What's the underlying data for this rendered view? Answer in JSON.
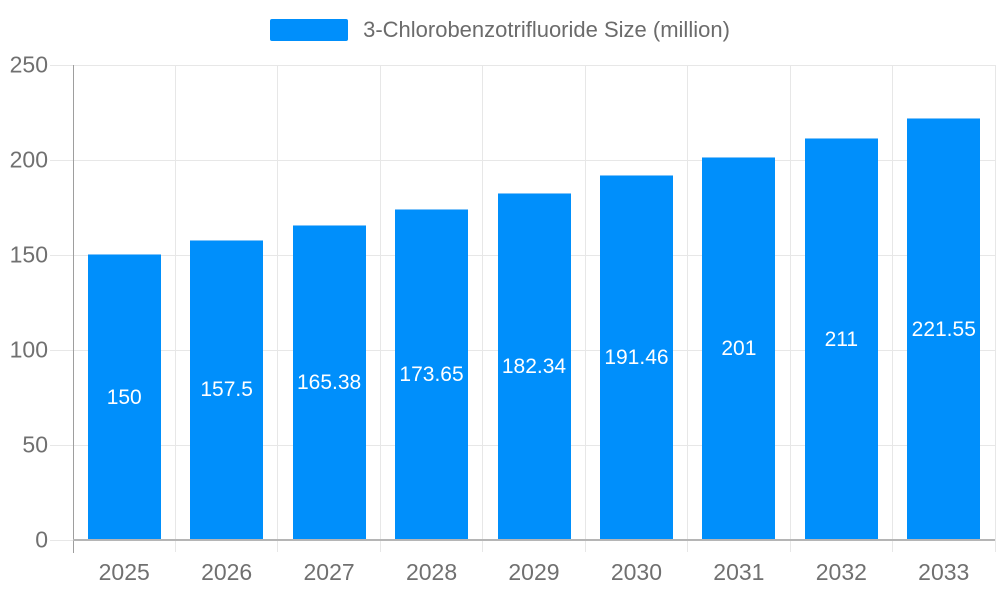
{
  "chart_data": {
    "type": "bar",
    "title": "3-Chlorobenzotrifluoride Size (million)",
    "categories": [
      "2025",
      "2026",
      "2027",
      "2028",
      "2029",
      "2030",
      "2031",
      "2032",
      "2033"
    ],
    "series": [
      {
        "name": "3-Chlorobenzotrifluoride Size (million)",
        "values": [
          150,
          157.5,
          165.38,
          173.65,
          182.34,
          191.46,
          201,
          211,
          221.55
        ]
      }
    ],
    "data_labels": [
      "150",
      "157.5",
      "165.38",
      "173.65",
      "182.34",
      "191.46",
      "201",
      "211",
      "221.55"
    ],
    "xlabel": "",
    "ylabel": "",
    "ylim": [
      0,
      250
    ],
    "yticks": [
      0,
      50,
      100,
      150,
      200,
      250
    ],
    "grid": true,
    "legend_position": "top"
  },
  "colors": {
    "bar": "#008FFB",
    "bar_top_stroke": "#7ec3f9",
    "grid": "#e7e7e7",
    "axis_y": "#9e9e9e",
    "axis_x": "#b5b5b5",
    "tick_label": "#707070",
    "title": "#6b6b6b",
    "data_label": "#ffffff",
    "background": "#ffffff"
  }
}
